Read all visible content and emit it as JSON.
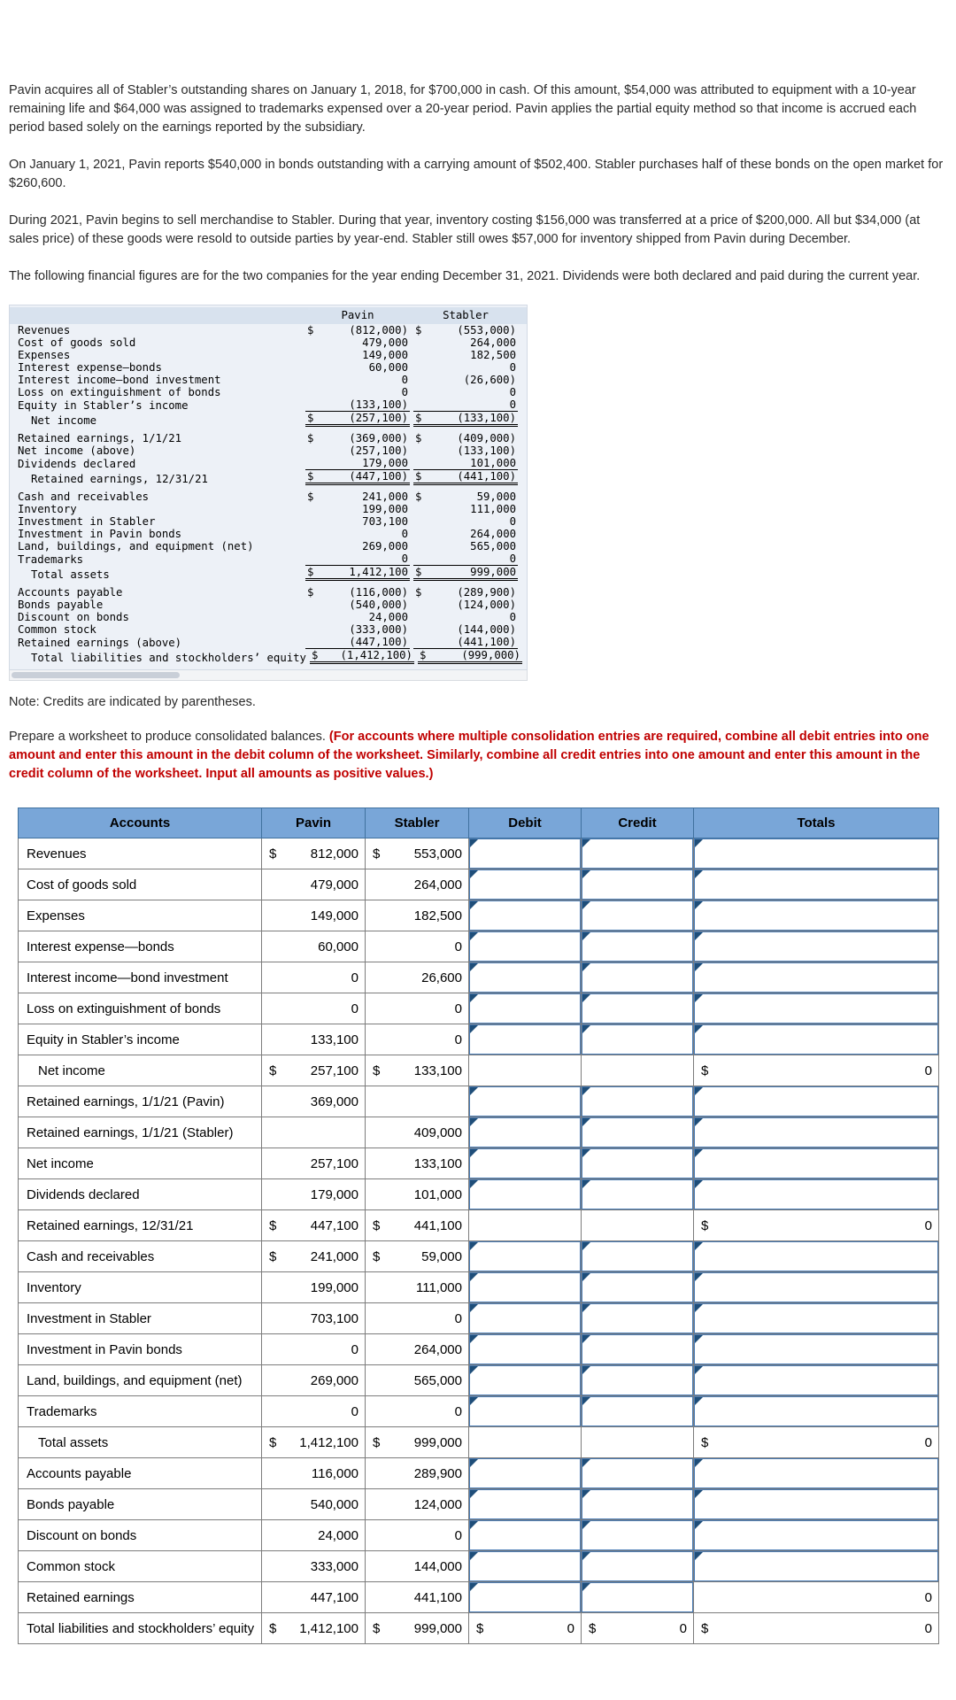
{
  "intro": {
    "paragraphs": [
      "Pavin acquires all of Stabler’s outstanding shares on January 1, 2018, for $700,000 in cash. Of this amount, $54,000 was attributed to equipment with a 10-year remaining life and $64,000 was assigned to trademarks expensed over a 20-year period. Pavin applies the partial equity method so that income is accrued each period based solely on the earnings reported by the subsidiary.",
      "On January 1, 2021, Pavin reports $540,000 in bonds outstanding with a carrying amount of $502,400. Stabler purchases half of these bonds on the open market for $260,600.",
      "During 2021, Pavin begins to sell merchandise to Stabler. During that year, inventory costing $156,000 was transferred at a price of $200,000. All but $34,000 (at sales price) of these goods were resold to outside parties by year-end. Stabler still owes $57,000 for inventory shipped from Pavin during December.",
      "The following financial figures are for the two companies for the year ending December 31, 2021. Dividends were both declared and paid during the current year."
    ]
  },
  "statements": {
    "columns": [
      "Pavin",
      "Stabler"
    ],
    "rows": [
      {
        "label": "Revenues",
        "pd": "$",
        "pv": "(812,000)",
        "sd": "$",
        "sv": "(553,000)"
      },
      {
        "label": "Cost of goods sold",
        "pd": "",
        "pv": "479,000",
        "sd": "",
        "sv": "264,000"
      },
      {
        "label": "Expenses",
        "pd": "",
        "pv": "149,000",
        "sd": "",
        "sv": "182,500"
      },
      {
        "label": "Interest expense—bonds",
        "pd": "",
        "pv": "60,000",
        "sd": "",
        "sv": "0"
      },
      {
        "label": "Interest income—bond investment",
        "pd": "",
        "pv": "0",
        "sd": "",
        "sv": "(26,600)"
      },
      {
        "label": "Loss on extinguishment of bonds",
        "pd": "",
        "pv": "0",
        "sd": "",
        "sv": "0"
      },
      {
        "label": "Equity in Stabler’s income",
        "pd": "",
        "pv": "(133,100)",
        "sd": "",
        "sv": "0",
        "underline": "single"
      },
      {
        "label": "Net income",
        "indent": true,
        "pd": "$",
        "pv": "(257,100)",
        "sd": "$",
        "sv": "(133,100)",
        "underline": "double",
        "gap": true
      },
      {
        "label": "Retained earnings, 1/1/21",
        "pd": "$",
        "pv": "(369,000)",
        "sd": "$",
        "sv": "(409,000)"
      },
      {
        "label": "Net income (above)",
        "pd": "",
        "pv": "(257,100)",
        "sd": "",
        "sv": "(133,100)"
      },
      {
        "label": "Dividends declared",
        "pd": "",
        "pv": "179,000",
        "sd": "",
        "sv": "101,000",
        "underline": "single"
      },
      {
        "label": "Retained earnings, 12/31/21",
        "indent": true,
        "pd": "$",
        "pv": "(447,100)",
        "sd": "$",
        "sv": "(441,100)",
        "underline": "double",
        "gap": true
      },
      {
        "label": "Cash and receivables",
        "pd": "$",
        "pv": "241,000",
        "sd": "$",
        "sv": "59,000"
      },
      {
        "label": "Inventory",
        "pd": "",
        "pv": "199,000",
        "sd": "",
        "sv": "111,000"
      },
      {
        "label": "Investment in Stabler",
        "pd": "",
        "pv": "703,100",
        "sd": "",
        "sv": "0"
      },
      {
        "label": "Investment in Pavin bonds",
        "pd": "",
        "pv": "0",
        "sd": "",
        "sv": "264,000"
      },
      {
        "label": "Land, buildings, and equipment (net)",
        "pd": "",
        "pv": "269,000",
        "sd": "",
        "sv": "565,000"
      },
      {
        "label": "Trademarks",
        "pd": "",
        "pv": "0",
        "sd": "",
        "sv": "0",
        "underline": "single"
      },
      {
        "label": "Total assets",
        "indent": true,
        "pd": "$",
        "pv": "1,412,100",
        "sd": "$",
        "sv": "999,000",
        "underline": "double",
        "gap": true
      },
      {
        "label": "Accounts payable",
        "pd": "$",
        "pv": "(116,000)",
        "sd": "$",
        "sv": "(289,900)"
      },
      {
        "label": "Bonds payable",
        "pd": "",
        "pv": "(540,000)",
        "sd": "",
        "sv": "(124,000)"
      },
      {
        "label": "Discount on bonds",
        "pd": "",
        "pv": "24,000",
        "sd": "",
        "sv": "0"
      },
      {
        "label": "Common stock",
        "pd": "",
        "pv": "(333,000)",
        "sd": "",
        "sv": "(144,000)"
      },
      {
        "label": "Retained earnings (above)",
        "pd": "",
        "pv": "(447,100)",
        "sd": "",
        "sv": "(441,100)",
        "underline": "single"
      },
      {
        "label": "Total liabilities and stockholders’ equity",
        "indent": true,
        "pd": "$",
        "pv": "(1,412,100)",
        "sd": "$",
        "sv": "(999,000)",
        "underline": "double"
      }
    ]
  },
  "note": "Note: Credits are indicated by parentheses.",
  "instructions": {
    "normal": "Prepare a worksheet to produce consolidated balances. ",
    "emphasis": "(For accounts where multiple consolidation entries are required, combine all debit entries into one amount and enter this amount in the debit column of the worksheet. Similarly, combine all credit entries into one amount and enter this amount in the credit column of the worksheet. Input all amounts as positive values.)"
  },
  "worksheet": {
    "headers": [
      "Accounts",
      "Pavin",
      "Stabler",
      "Debit",
      "Credit",
      "Totals"
    ],
    "rows": [
      {
        "account": "Revenues",
        "pd": "$",
        "pv": "812,000",
        "sd": "$",
        "sv": "553,000",
        "debit": {
          "kind": "input"
        },
        "credit": {
          "kind": "input"
        },
        "totals": {
          "kind": "input"
        }
      },
      {
        "account": "Cost of goods sold",
        "pd": "",
        "pv": "479,000",
        "sd": "",
        "sv": "264,000",
        "debit": {
          "kind": "input"
        },
        "credit": {
          "kind": "input"
        },
        "totals": {
          "kind": "input"
        }
      },
      {
        "account": "Expenses",
        "pd": "",
        "pv": "149,000",
        "sd": "",
        "sv": "182,500",
        "debit": {
          "kind": "input"
        },
        "credit": {
          "kind": "input"
        },
        "totals": {
          "kind": "input"
        }
      },
      {
        "account": "Interest expense—bonds",
        "pd": "",
        "pv": "60,000",
        "sd": "",
        "sv": "0",
        "debit": {
          "kind": "input"
        },
        "credit": {
          "kind": "input"
        },
        "totals": {
          "kind": "input"
        }
      },
      {
        "account": "Interest income—bond investment",
        "pd": "",
        "pv": "0",
        "sd": "",
        "sv": "26,600",
        "debit": {
          "kind": "input"
        },
        "credit": {
          "kind": "input"
        },
        "totals": {
          "kind": "input"
        }
      },
      {
        "account": "Loss on extinguishment of bonds",
        "pd": "",
        "pv": "0",
        "sd": "",
        "sv": "0",
        "debit": {
          "kind": "input"
        },
        "credit": {
          "kind": "input"
        },
        "totals": {
          "kind": "input"
        }
      },
      {
        "account": "Equity in Stabler’s income",
        "pd": "",
        "pv": "133,100",
        "sd": "",
        "sv": "0",
        "debit": {
          "kind": "input"
        },
        "credit": {
          "kind": "input"
        },
        "totals": {
          "kind": "input"
        }
      },
      {
        "account": "Net income",
        "indent": true,
        "pd": "$",
        "pv": "257,100",
        "sd": "$",
        "sv": "133,100",
        "debit": {
          "kind": "blank"
        },
        "credit": {
          "kind": "blank"
        },
        "totals": {
          "kind": "value",
          "d": "$",
          "v": "0"
        }
      },
      {
        "account": "Retained earnings, 1/1/21 (Pavin)",
        "pd": "",
        "pv": "369,000",
        "sd": "",
        "sv": "",
        "debit": {
          "kind": "input"
        },
        "credit": {
          "kind": "input"
        },
        "totals": {
          "kind": "input"
        }
      },
      {
        "account": "Retained earnings, 1/1/21 (Stabler)",
        "pd": "",
        "pv": "",
        "sd": "",
        "sv": "409,000",
        "debit": {
          "kind": "input"
        },
        "credit": {
          "kind": "input"
        },
        "totals": {
          "kind": "input"
        }
      },
      {
        "account": "Net income",
        "pd": "",
        "pv": "257,100",
        "sd": "",
        "sv": "133,100",
        "debit": {
          "kind": "input"
        },
        "credit": {
          "kind": "input"
        },
        "totals": {
          "kind": "input"
        }
      },
      {
        "account": "Dividends declared",
        "pd": "",
        "pv": "179,000",
        "sd": "",
        "sv": "101,000",
        "debit": {
          "kind": "input"
        },
        "credit": {
          "kind": "input"
        },
        "totals": {
          "kind": "input"
        }
      },
      {
        "account": "Retained earnings, 12/31/21",
        "pd": "$",
        "pv": "447,100",
        "sd": "$",
        "sv": "441,100",
        "debit": {
          "kind": "blank"
        },
        "credit": {
          "kind": "blank"
        },
        "totals": {
          "kind": "value",
          "d": "$",
          "v": "0"
        }
      },
      {
        "account": "Cash and receivables",
        "pd": "$",
        "pv": "241,000",
        "sd": "$",
        "sv": "59,000",
        "debit": {
          "kind": "input"
        },
        "credit": {
          "kind": "input"
        },
        "totals": {
          "kind": "input"
        }
      },
      {
        "account": "Inventory",
        "pd": "",
        "pv": "199,000",
        "sd": "",
        "sv": "111,000",
        "debit": {
          "kind": "input"
        },
        "credit": {
          "kind": "input"
        },
        "totals": {
          "kind": "input"
        }
      },
      {
        "account": "Investment in Stabler",
        "pd": "",
        "pv": "703,100",
        "sd": "",
        "sv": "0",
        "debit": {
          "kind": "input"
        },
        "credit": {
          "kind": "input"
        },
        "totals": {
          "kind": "input"
        }
      },
      {
        "account": "Investment in Pavin bonds",
        "pd": "",
        "pv": "0",
        "sd": "",
        "sv": "264,000",
        "debit": {
          "kind": "input"
        },
        "credit": {
          "kind": "input"
        },
        "totals": {
          "kind": "input"
        }
      },
      {
        "account": "Land, buildings, and equipment (net)",
        "pd": "",
        "pv": "269,000",
        "sd": "",
        "sv": "565,000",
        "debit": {
          "kind": "input"
        },
        "credit": {
          "kind": "input"
        },
        "totals": {
          "kind": "input"
        }
      },
      {
        "account": "Trademarks",
        "pd": "",
        "pv": "0",
        "sd": "",
        "sv": "0",
        "debit": {
          "kind": "input"
        },
        "credit": {
          "kind": "input"
        },
        "totals": {
          "kind": "input"
        }
      },
      {
        "account": "Total assets",
        "indent": true,
        "pd": "$",
        "pv": "1,412,100",
        "sd": "$",
        "sv": "999,000",
        "debit": {
          "kind": "blank"
        },
        "credit": {
          "kind": "blank"
        },
        "totals": {
          "kind": "value",
          "d": "$",
          "v": "0"
        }
      },
      {
        "account": "Accounts payable",
        "pd": "",
        "pv": "116,000",
        "sd": "",
        "sv": "289,900",
        "debit": {
          "kind": "input"
        },
        "credit": {
          "kind": "input"
        },
        "totals": {
          "kind": "input"
        }
      },
      {
        "account": "Bonds payable",
        "pd": "",
        "pv": "540,000",
        "sd": "",
        "sv": "124,000",
        "debit": {
          "kind": "input"
        },
        "credit": {
          "kind": "input"
        },
        "totals": {
          "kind": "input"
        }
      },
      {
        "account": "Discount on bonds",
        "pd": "",
        "pv": "24,000",
        "sd": "",
        "sv": "0",
        "debit": {
          "kind": "input"
        },
        "credit": {
          "kind": "input"
        },
        "totals": {
          "kind": "input"
        }
      },
      {
        "account": "Common stock",
        "pd": "",
        "pv": "333,000",
        "sd": "",
        "sv": "144,000",
        "debit": {
          "kind": "input"
        },
        "credit": {
          "kind": "input"
        },
        "totals": {
          "kind": "input"
        }
      },
      {
        "account": "Retained earnings",
        "pd": "",
        "pv": "447,100",
        "sd": "",
        "sv": "441,100",
        "debit": {
          "kind": "input"
        },
        "credit": {
          "kind": "input"
        },
        "totals": {
          "kind": "value",
          "d": "",
          "v": "0"
        }
      },
      {
        "account": "Total liabilities and stockholders’ equity",
        "pd": "$",
        "pv": "1,412,100",
        "sd": "$",
        "sv": "999,000",
        "debit": {
          "kind": "value",
          "d": "$",
          "v": "0"
        },
        "credit": {
          "kind": "value",
          "d": "$",
          "v": "0"
        },
        "totals": {
          "kind": "value",
          "d": "$",
          "v": "0"
        }
      }
    ]
  }
}
